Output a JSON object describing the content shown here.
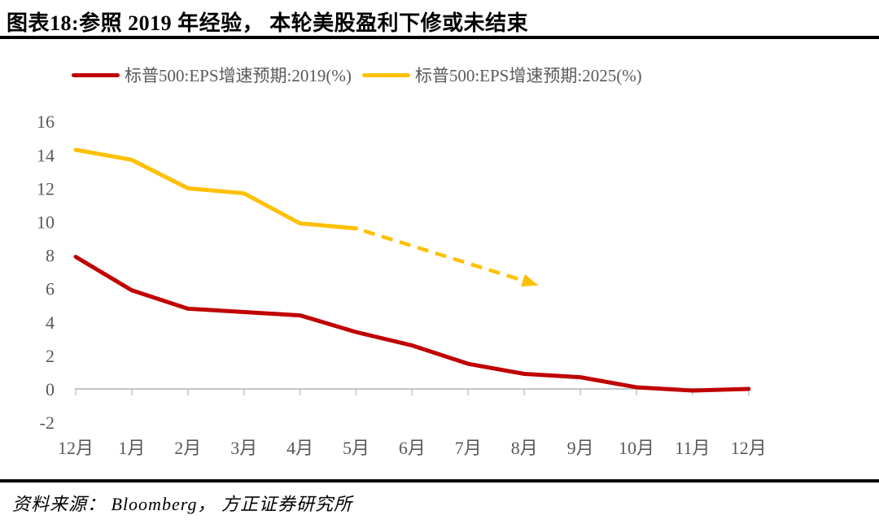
{
  "title": "图表18:参照 2019 年经验， 本轮美股盈利下修或未结束",
  "legend": [
    {
      "label": "标普500:EPS增速预期:2019(%)",
      "color": "#C00000"
    },
    {
      "label": "标普500:EPS增速预期:2025(%)",
      "color": "#FFC000"
    }
  ],
  "footer": {
    "source": "资料来源： Bloomberg， 方正证券研究所"
  },
  "colors": {
    "red": "#C00000",
    "yellow": "#FFC000",
    "axis_line": "#C6C6C6",
    "tick": "#C6C6C6",
    "axis_label": "#595959",
    "rule": "#000000"
  },
  "chart_data": {
    "type": "line",
    "title": "",
    "xlabel": "",
    "ylabel": "",
    "categories": [
      "12月",
      "1月",
      "2月",
      "3月",
      "4月",
      "5月",
      "6月",
      "7月",
      "8月",
      "9月",
      "10月",
      "11月",
      "12月"
    ],
    "series": [
      {
        "name": "标普500:EPS增速预期:2019(%)",
        "color": "#C00000",
        "style": "solid",
        "values": [
          7.9,
          5.9,
          4.8,
          4.6,
          4.4,
          3.4,
          2.6,
          1.5,
          0.9,
          0.7,
          0.1,
          -0.1,
          0.0
        ]
      },
      {
        "name": "标普500:EPS增速预期:2025(%)",
        "color": "#FFC000",
        "style": "solid",
        "values": [
          14.3,
          13.7,
          12.0,
          11.7,
          9.9,
          9.6,
          null,
          null,
          null,
          null,
          null,
          null,
          null
        ]
      }
    ],
    "projection_arrow": {
      "series": "标普500:EPS增速预期:2025(%)",
      "color": "#FFC000",
      "style": "dashed-arrow",
      "from": {
        "x_index": 5,
        "value": 9.6
      },
      "to": {
        "x_index": 8.25,
        "value": 6.2
      }
    },
    "ylim": [
      -2,
      16
    ],
    "y_ticks": [
      16,
      14,
      12,
      10,
      8,
      6,
      4,
      2,
      0,
      -2
    ],
    "grid": false,
    "legend_position": "top"
  }
}
